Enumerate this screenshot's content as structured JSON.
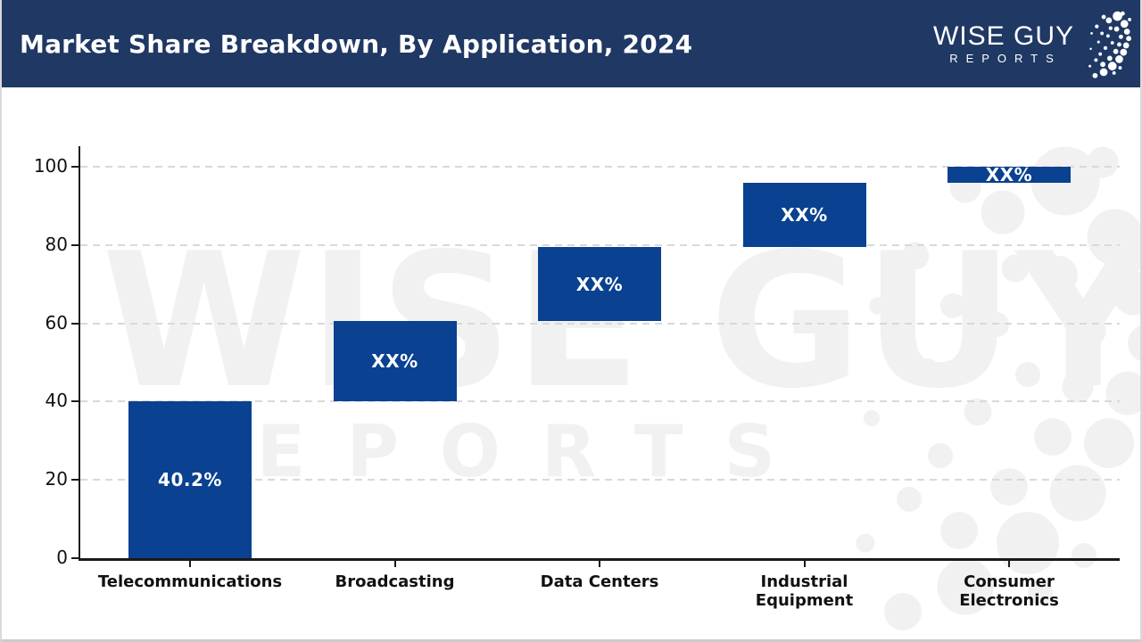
{
  "header": {
    "title": "Market Share Breakdown, By Application, 2024",
    "logo": {
      "line1": "WISE GUY",
      "line2": "REPORTS"
    }
  },
  "watermark": {
    "line1": "WISE GUY",
    "line2": "REPORTS"
  },
  "colors": {
    "header_bg": "#1f3864",
    "bar": "#0a4190",
    "grid": "#d9d9d9",
    "axis": "#1a1a1a",
    "watermark": "#f1f1f1",
    "bar_label": "#ffffff"
  },
  "chart_data": {
    "type": "bar",
    "subtype": "waterfall",
    "title": "Market Share Breakdown, By Application, 2024",
    "xlabel": "",
    "ylabel": "",
    "ylim": [
      0,
      105
    ],
    "y_ticks": [
      0,
      20,
      40,
      60,
      80,
      100
    ],
    "grid": "horizontal-dashed",
    "legend": "none",
    "categories": [
      "Telecommunications",
      "Broadcasting",
      "Data Centers",
      "Industrial Equipment",
      "Consumer Electronics"
    ],
    "category_label_lines": [
      [
        "Telecommunications"
      ],
      [
        "Broadcasting"
      ],
      [
        "Data Centers"
      ],
      [
        "Industrial",
        "Equipment"
      ],
      [
        "Consumer",
        "Electronics"
      ]
    ],
    "segments": [
      {
        "category": "Telecommunications",
        "start": 0,
        "end": 40.2,
        "value": 40.2,
        "label": "40.2%"
      },
      {
        "category": "Broadcasting",
        "start": 40.2,
        "end": 60.5,
        "value": 20.3,
        "label": "XX%"
      },
      {
        "category": "Data Centers",
        "start": 60.5,
        "end": 79.5,
        "value": 19.0,
        "label": "XX%"
      },
      {
        "category": "Industrial Equipment",
        "start": 79.5,
        "end": 96.0,
        "value": 16.5,
        "label": "XX%"
      },
      {
        "category": "Consumer Electronics",
        "start": 96.0,
        "end": 100.0,
        "value": 4.0,
        "label": "XX%"
      }
    ]
  }
}
